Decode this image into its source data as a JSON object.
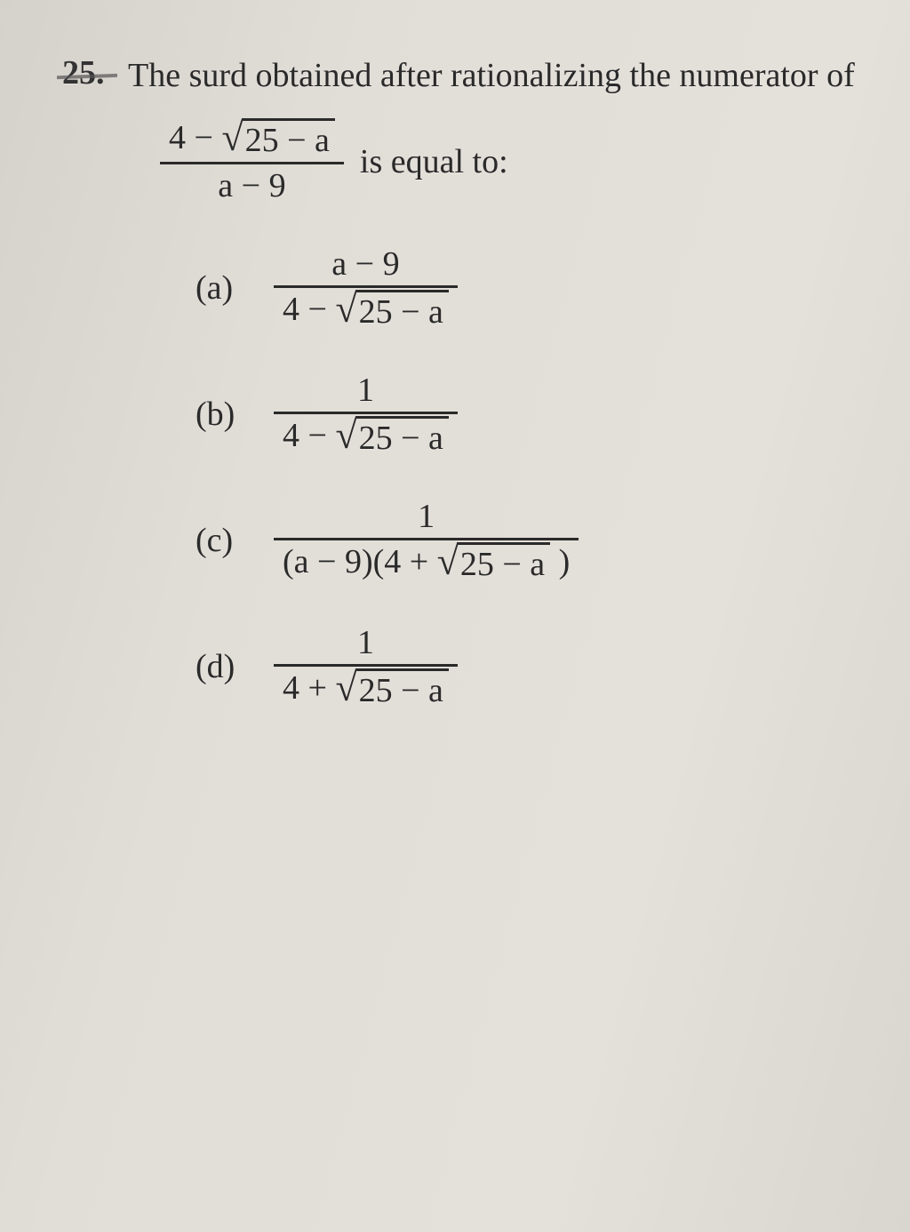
{
  "colors": {
    "background": "#dedad5",
    "text": "#2a2a2a",
    "rule": "#2a2a2a",
    "strike": "#555555"
  },
  "typography": {
    "body_fontsize_pt": 28,
    "font_family": "Georgia / serif"
  },
  "question": {
    "number": "25.",
    "number_struck": true,
    "stem_text": "The surd obtained after rationalizing the numerator of",
    "expression": {
      "numerator_prefix": "4 −",
      "numerator_radicand": "25 − a",
      "denominator": "a − 9"
    },
    "stem_tail": "is equal to:"
  },
  "options": [
    {
      "label": "(a)",
      "type": "fraction",
      "numerator": {
        "plain": "a − 9"
      },
      "denominator": {
        "prefix": "4 −",
        "radicand": "25 − a"
      }
    },
    {
      "label": "(b)",
      "type": "fraction",
      "numerator": {
        "plain": "1"
      },
      "denominator": {
        "prefix": "4 −",
        "radicand": "25 − a"
      }
    },
    {
      "label": "(c)",
      "type": "fraction",
      "numerator": {
        "plain": "1"
      },
      "denominator": {
        "left": "(a − 9)(4 +",
        "radicand": "25 − a",
        "right": ")"
      }
    },
    {
      "label": "(d)",
      "type": "fraction",
      "numerator": {
        "plain": "1"
      },
      "denominator": {
        "prefix": "4 +",
        "radicand": "25 − a"
      }
    }
  ]
}
